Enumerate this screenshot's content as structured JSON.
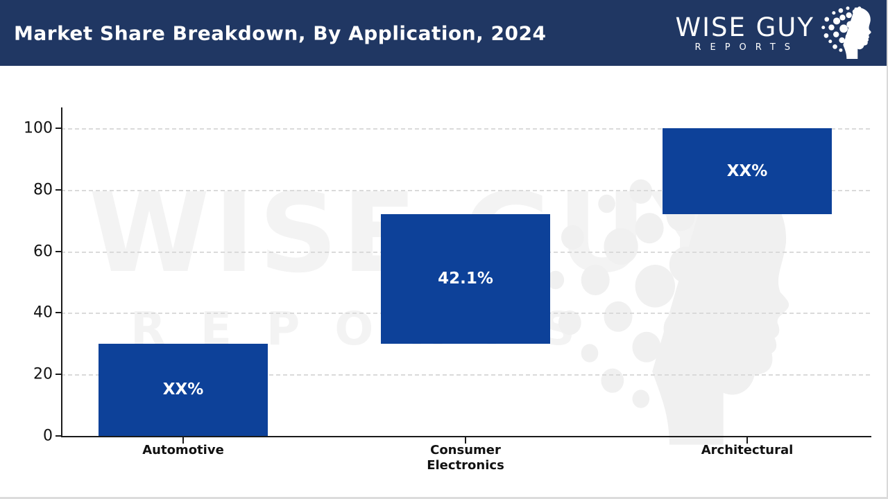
{
  "header": {
    "title": "Market Share Breakdown, By Application, 2024",
    "background_color": "#203763",
    "logo": {
      "line1": "WISE GUY",
      "line2": "REPORTS"
    }
  },
  "watermark": {
    "line1": "WISE GUY",
    "line2": "REPORTS"
  },
  "chart_data": {
    "type": "bar",
    "subtype": "floating-segment (waterfall style market share)",
    "title": "Market Share Breakdown, By Application, 2024",
    "categories": [
      "Automotive",
      "Consumer Electronics",
      "Architectural"
    ],
    "segments": [
      {
        "category": "Automotive",
        "from": 0,
        "to": 30,
        "value": 30,
        "label": "XX%"
      },
      {
        "category": "Consumer Electronics",
        "from": 30,
        "to": 72.1,
        "value": 42.1,
        "label": "42.1%"
      },
      {
        "category": "Architectural",
        "from": 72.1,
        "to": 100,
        "value": 27.9,
        "label": "XX%"
      }
    ],
    "bar_labels": [
      "XX%",
      "42.1%",
      "XX%"
    ],
    "y_ticks": [
      0,
      20,
      40,
      60,
      80,
      100
    ],
    "ylim": [
      0,
      100
    ],
    "xlabel": "",
    "ylabel": "",
    "bar_color": "#0d4199",
    "grid": "horizontal dashed",
    "legend": "none"
  }
}
